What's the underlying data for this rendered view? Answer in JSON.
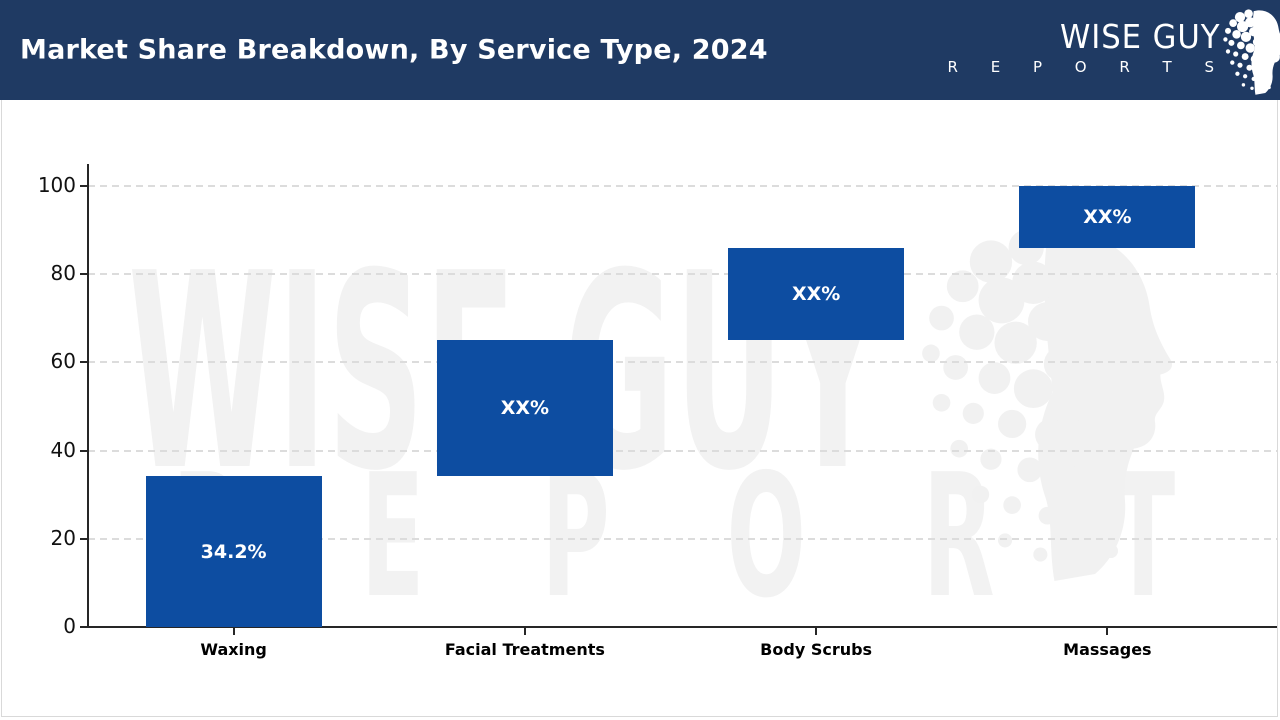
{
  "header": {
    "title": "Market Share Breakdown, By Service Type, 2024",
    "background_color": "#1f3a63",
    "logo": {
      "line1": "WISE GUY",
      "line2": "R E P O R T S"
    }
  },
  "watermark": {
    "line1": "WISE GUY",
    "line2": "R E P O R T S"
  },
  "chart_data": {
    "type": "bar",
    "subtype": "waterfall (floating segment bars)",
    "title": "Market Share Breakdown, By Service Type, 2024",
    "categories": [
      "Waxing",
      "Facial Treatments",
      "Body Scrubs",
      "Massages"
    ],
    "bars": [
      {
        "category": "Waxing",
        "start": 0,
        "end": 34.2,
        "label": "34.2%"
      },
      {
        "category": "Facial Treatments",
        "start": 34.2,
        "end": 65,
        "label": "XX%"
      },
      {
        "category": "Body Scrubs",
        "start": 65,
        "end": 86,
        "label": "XX%"
      },
      {
        "category": "Massages",
        "start": 86,
        "end": 100,
        "label": "XX%"
      }
    ],
    "bar_color": "#0d4da1",
    "bar_label_color": "#ffffff",
    "yticks": [
      0,
      20,
      40,
      60,
      80,
      100
    ],
    "ylim": [
      0,
      105
    ],
    "xlabel": "",
    "ylabel": "",
    "grid": "horizontal dashed light-gray",
    "legend_position": "none"
  }
}
